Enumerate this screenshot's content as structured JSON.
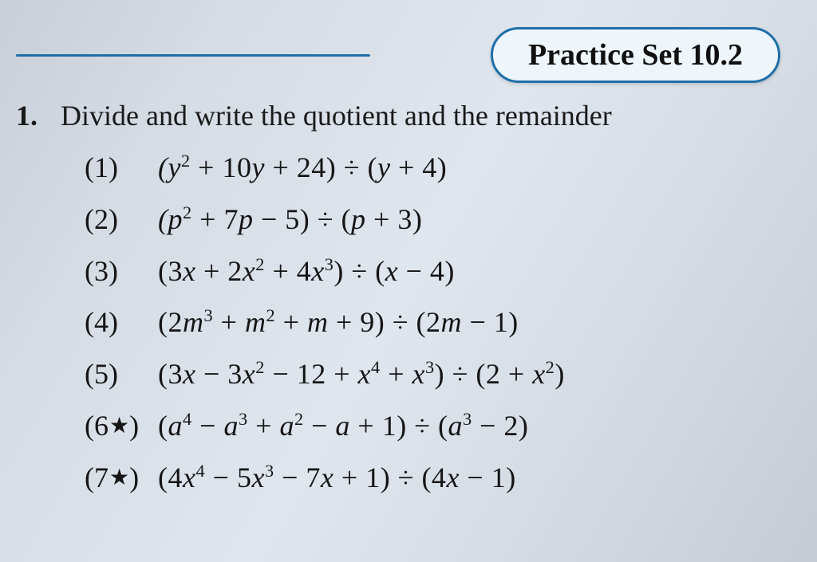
{
  "header": {
    "banner_text": "Practice Set 10.2",
    "banner_bg": "#eef5fb",
    "banner_border": "#1e6fa8",
    "line_color": "#1e6fa8"
  },
  "question": {
    "number": "1.",
    "text": "Divide and write the quotient and the remainder"
  },
  "items": [
    {
      "label": "(1)",
      "expr_html": "(<i>y</i><sup>2</sup> <span class='n'>+ 10</span><i>y</i> <span class='n'>+ 24) ÷ (</span><i>y</i> <span class='n'>+ 4)</span>"
    },
    {
      "label": "(2)",
      "expr_html": "(<i>p</i><sup>2</sup> <span class='n'>+ 7</span><i>p</i> <span class='n'>− 5) ÷ (</span><i>p</i> <span class='n'>+ 3)</span>"
    },
    {
      "label": "(3)",
      "expr_html": "<span class='n'>(3</span><i>x</i> <span class='n'>+ 2</span><i>x</i><sup>2</sup> <span class='n'>+ 4</span><i>x</i><sup>3</sup><span class='n'>) ÷ (</span><i>x</i> <span class='n'>− 4)</span>"
    },
    {
      "label": "(4)",
      "expr_html": "<span class='n'>(2</span><i>m</i><sup>3</sup> <span class='n'>+ </span><i>m</i><sup>2</sup> <span class='n'>+ </span><i>m</i> <span class='n'>+ 9) ÷ (2</span><i>m</i> <span class='n'>− 1)</span>"
    },
    {
      "label": "(5)",
      "expr_html": "<span class='n'>(3</span><i>x</i> <span class='n'>− 3</span><i>x</i><sup>2</sup> <span class='n'>− 12 + </span><i>x</i><sup>4</sup> <span class='n'>+ </span><i>x</i><sup>3</sup><span class='n'>) ÷ (2 + </span><i>x</i><sup>2</sup><span class='n'>)</span>"
    },
    {
      "label": "(6<span class='star'>★</span>)",
      "expr_html": "<span class='n'>(</span><i>a</i><sup>4</sup> <span class='n'>− </span><i>a</i><sup>3</sup> <span class='n'>+ </span><i>a</i><sup>2</sup> <span class='n'>− </span><i>a</i> <span class='n'>+ 1) ÷ (</span><i>a</i><sup>3</sup> <span class='n'>− 2)</span>"
    },
    {
      "label": "(7<span class='star'>★</span>)",
      "expr_html": "<span class='n'>(4</span><i>x</i><sup>4</sup> <span class='n'>− 5</span><i>x</i><sup>3</sup> <span class='n'>− 7</span><i>x</i> <span class='n'>+ 1) ÷ (4</span><i>x</i> <span class='n'>− 1)</span>"
    }
  ],
  "styles": {
    "body_bg_gradient": [
      "#c9cfd8",
      "#d6dce4",
      "#e0e6ee",
      "#d2d8e0",
      "#c5cbd4"
    ],
    "text_color": "#1a1a1a",
    "font_family": "Times New Roman, Georgia, serif",
    "banner_fontsize": 38,
    "question_fontsize": 36,
    "item_fontsize": 36
  }
}
